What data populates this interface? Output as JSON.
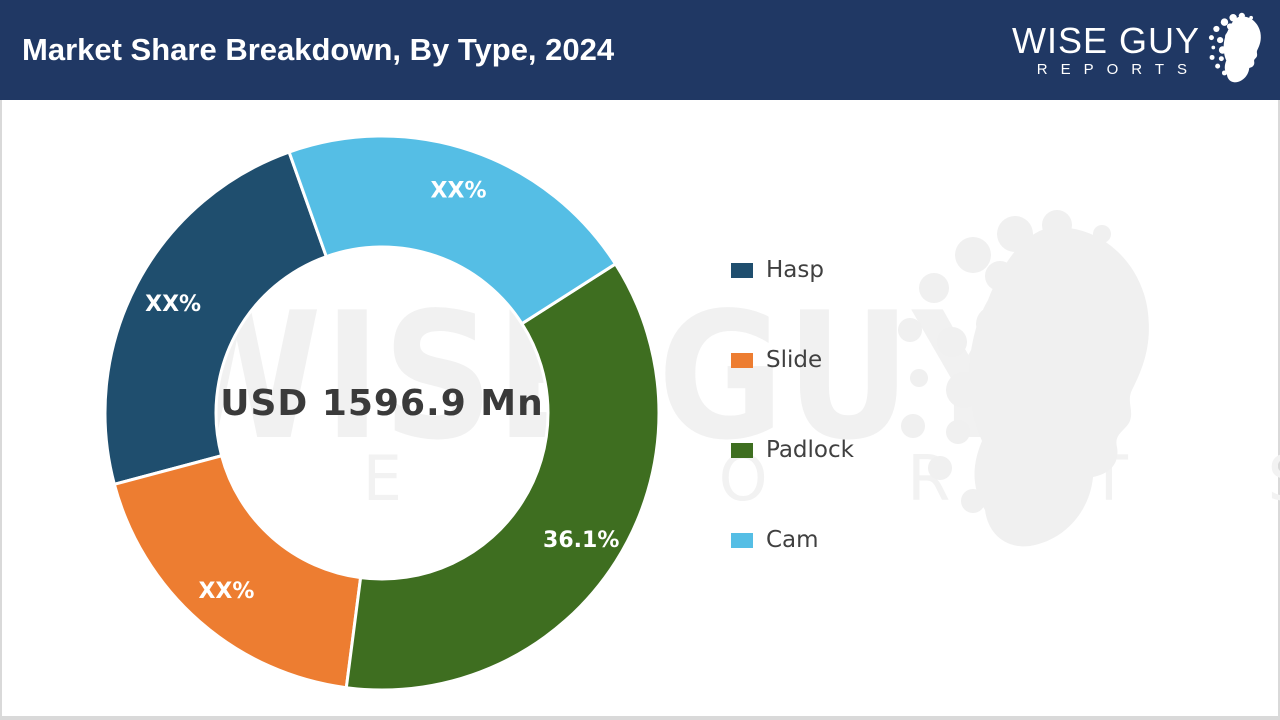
{
  "header": {
    "title": "Market Share Breakdown, By Type, 2024",
    "logo": {
      "line1": "WISE GUY",
      "line2": "REPORTS"
    }
  },
  "chart_data": {
    "type": "pie",
    "subtype": "donut",
    "title": "Market Share Breakdown, By Type, 2024",
    "center_label": "USD 1596.9 Mn",
    "legend_position": "right",
    "series": [
      {
        "name": "Hasp",
        "value": 23.7,
        "label": "XX%",
        "color": "#1F4E6E"
      },
      {
        "name": "Slide",
        "value": 18.8,
        "label": "XX%",
        "color": "#ED7D31"
      },
      {
        "name": "Padlock",
        "value": 36.1,
        "label": "36.1%",
        "color": "#3E6E20"
      },
      {
        "name": "Cam",
        "value": 21.4,
        "label": "XX%",
        "color": "#55BEE5"
      }
    ]
  },
  "watermark": {
    "line1": "WISE GUY",
    "line2": "R E P O R T S"
  },
  "colors": {
    "header_bg": "#203864",
    "center_text": "#3A3A3A",
    "legend_text": "#404040",
    "border": "#D9D9D9",
    "watermark": "#F1F1F1"
  }
}
